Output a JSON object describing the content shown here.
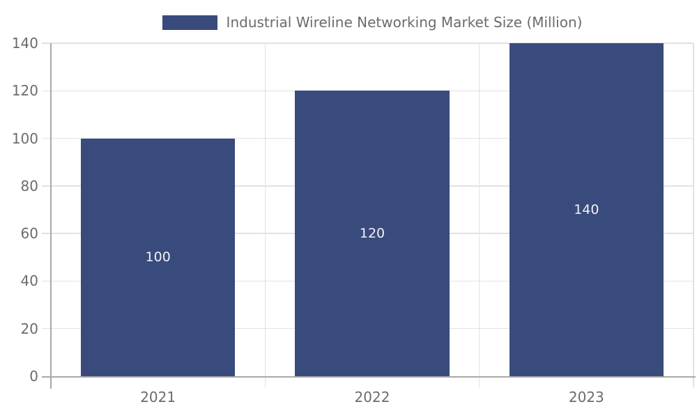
{
  "chart_data": {
    "type": "bar",
    "title": "Industrial Wireline Networking Market Size (Million)",
    "categories": [
      "2021",
      "2022",
      "2023"
    ],
    "values": [
      100,
      120,
      140
    ],
    "bar_value_labels": [
      "100",
      "120",
      "140"
    ],
    "xlabel": "",
    "ylabel": "",
    "ylim": [
      0,
      140
    ],
    "yticks": [
      0,
      20,
      40,
      60,
      80,
      100,
      120,
      140
    ],
    "grid": true,
    "legend_position": "top",
    "legend_entries": [
      "Industrial Wireline Networking Market Size (Million)"
    ]
  },
  "colors": {
    "bar": "#394B7D",
    "bar_label_text": "#F2F2F2",
    "axis_text": "#6B6B6B",
    "gridline": "#E2E2E2",
    "axis_line": "#A9A9A9",
    "background": "#FFFFFF"
  }
}
